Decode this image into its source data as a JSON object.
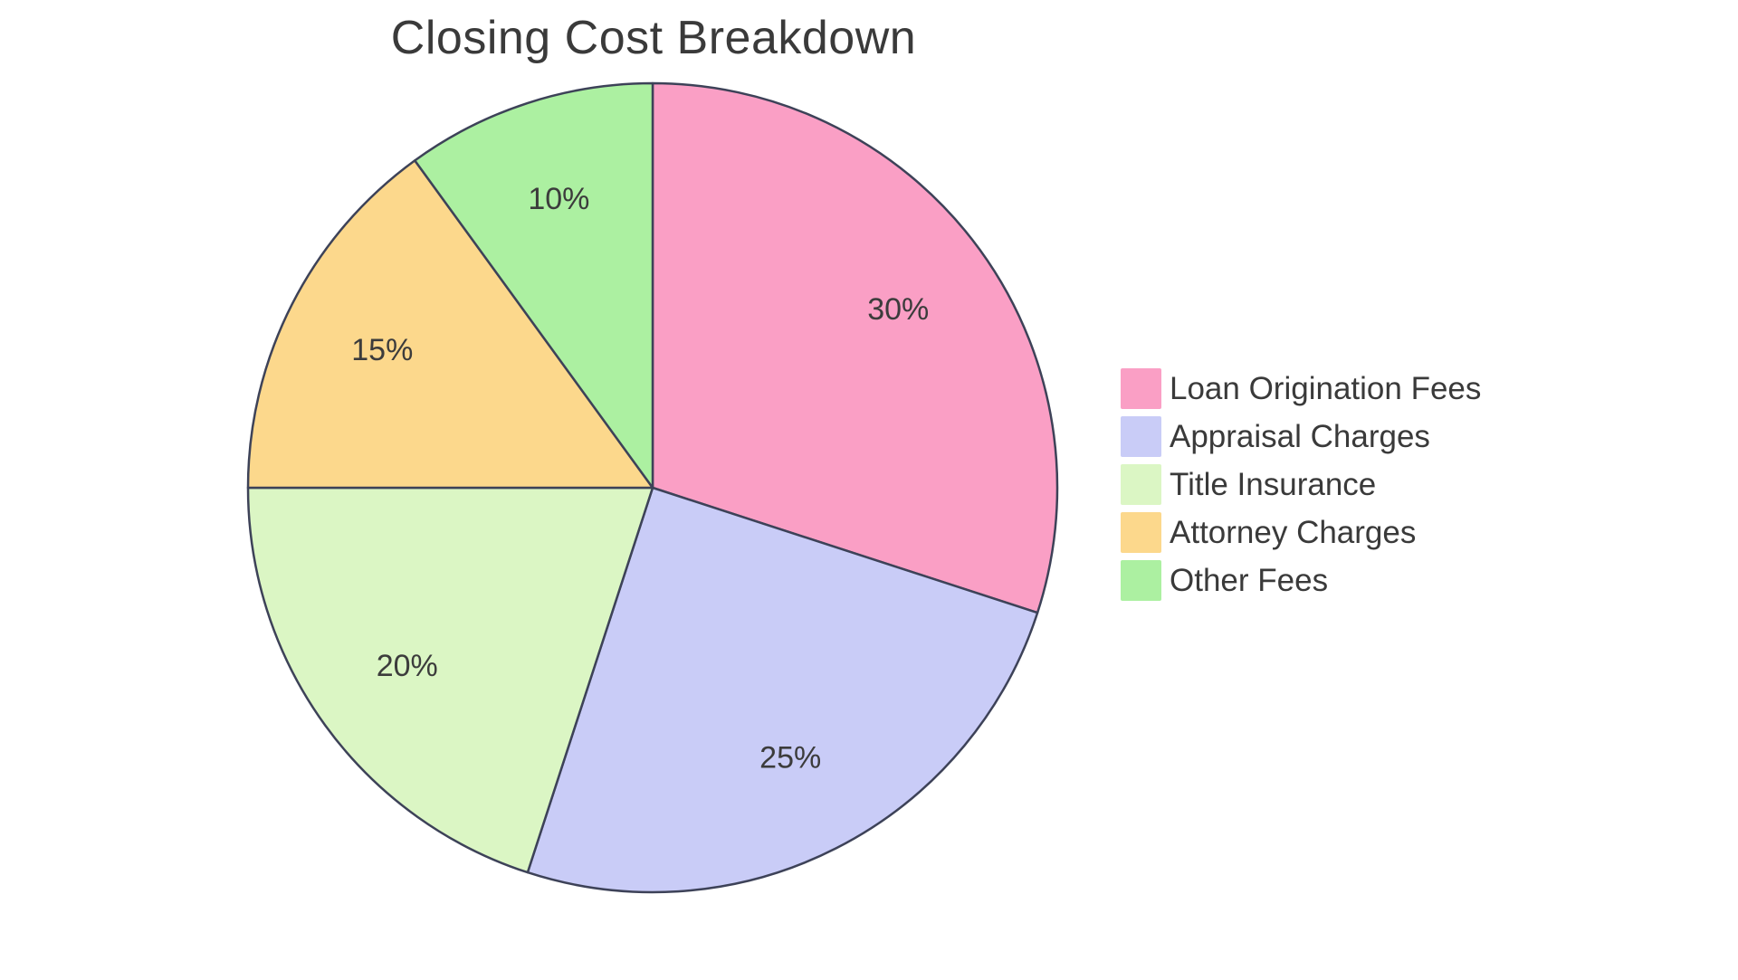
{
  "chart_title": "Closing Cost Breakdown",
  "chart_data": {
    "type": "pie",
    "title": "Closing Cost Breakdown",
    "labels": [
      "Loan Origination Fees",
      "Appraisal Charges",
      "Title Insurance",
      "Attorney Charges",
      "Other Fees"
    ],
    "values": [
      30,
      25,
      20,
      15,
      10
    ],
    "value_labels": [
      "30%",
      "25%",
      "20%",
      "15%",
      "10%"
    ],
    "colors": [
      "#FA9FC5",
      "#C9CCF7",
      "#DBF6C4",
      "#FCD88C",
      "#ACF0A1"
    ],
    "start_angle": "top",
    "direction": "clockwise",
    "stroke_color": "#3D4258",
    "stroke_width": 2.5,
    "label_color": "#3c3c3c",
    "pct_distance": 0.75,
    "legend_position": "right"
  },
  "legend": {
    "items": [
      {
        "label": "Loan Origination Fees",
        "color": "#FA9FC5"
      },
      {
        "label": "Appraisal Charges",
        "color": "#C9CCF7"
      },
      {
        "label": "Title Insurance",
        "color": "#DBF6C4"
      },
      {
        "label": "Attorney Charges",
        "color": "#FCD88C"
      },
      {
        "label": "Other Fees",
        "color": "#ACF0A1"
      }
    ]
  }
}
